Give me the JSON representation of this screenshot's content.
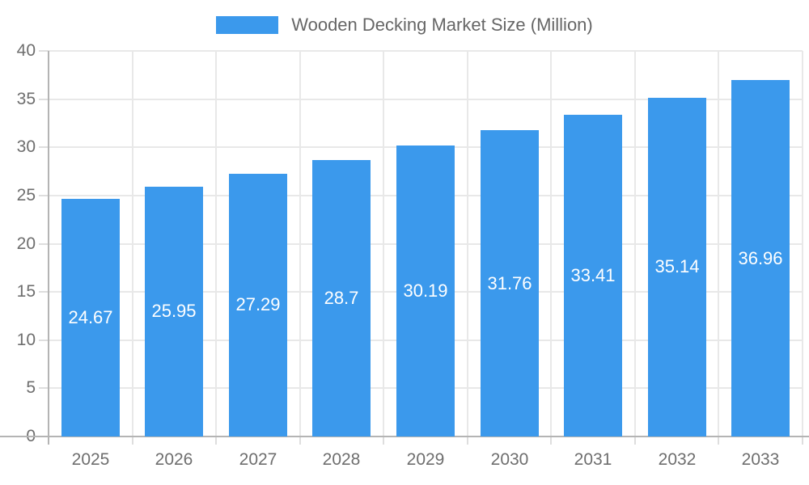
{
  "chart_data": {
    "type": "bar",
    "title": "Wooden Decking Market Size (Million)",
    "categories": [
      "2025",
      "2026",
      "2027",
      "2028",
      "2029",
      "2030",
      "2031",
      "2032",
      "2033"
    ],
    "values": [
      24.67,
      25.95,
      27.29,
      28.7,
      30.19,
      31.76,
      33.41,
      35.14,
      36.96
    ],
    "value_labels": [
      "24.67",
      "25.95",
      "27.29",
      "28.7",
      "30.19",
      "31.76",
      "33.41",
      "35.14",
      "36.96"
    ],
    "xlabel": "",
    "ylabel": "",
    "ylim": [
      0,
      40
    ],
    "y_ticks": [
      0,
      5,
      10,
      15,
      20,
      25,
      30,
      35,
      40
    ],
    "grid": true,
    "legend_position": "top",
    "colors": {
      "bar": "#3b99ec",
      "grid": "#e8e8e8",
      "axis": "#b4b4b4",
      "tick": "#dedede",
      "axis_label_text": "#6e6e6e",
      "title_text": "#666666",
      "bar_label_text": "#ffffff",
      "background": "#ffffff"
    }
  }
}
